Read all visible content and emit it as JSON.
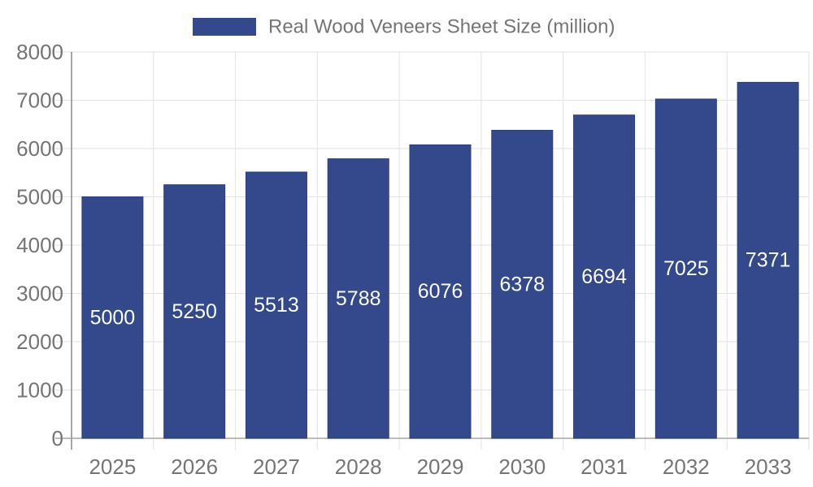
{
  "chart_data": {
    "type": "bar",
    "title": "Real Wood Veneers Sheet Size (million)",
    "categories": [
      "2025",
      "2026",
      "2027",
      "2028",
      "2029",
      "2030",
      "2031",
      "2032",
      "2033"
    ],
    "values": [
      5000,
      5250,
      5513,
      5788,
      6076,
      6378,
      6694,
      7025,
      7371
    ],
    "xlabel": "",
    "ylabel": "",
    "ylim": [
      0,
      8000
    ],
    "yticks": [
      0,
      1000,
      2000,
      3000,
      4000,
      5000,
      6000,
      7000,
      8000
    ],
    "grid": true,
    "legend_position": "top",
    "value_label_position": "inside-center",
    "colors": {
      "bar": "#34498C",
      "bar_border": "#2d3e7a",
      "grid": "#e2e2e8",
      "y_axis": "#8a8a8a",
      "x_axis": "#a6a6a6",
      "tick_text": "#757575",
      "value_label": "#ffffff",
      "legend_text": "#757575",
      "background": "#ffffff"
    }
  }
}
